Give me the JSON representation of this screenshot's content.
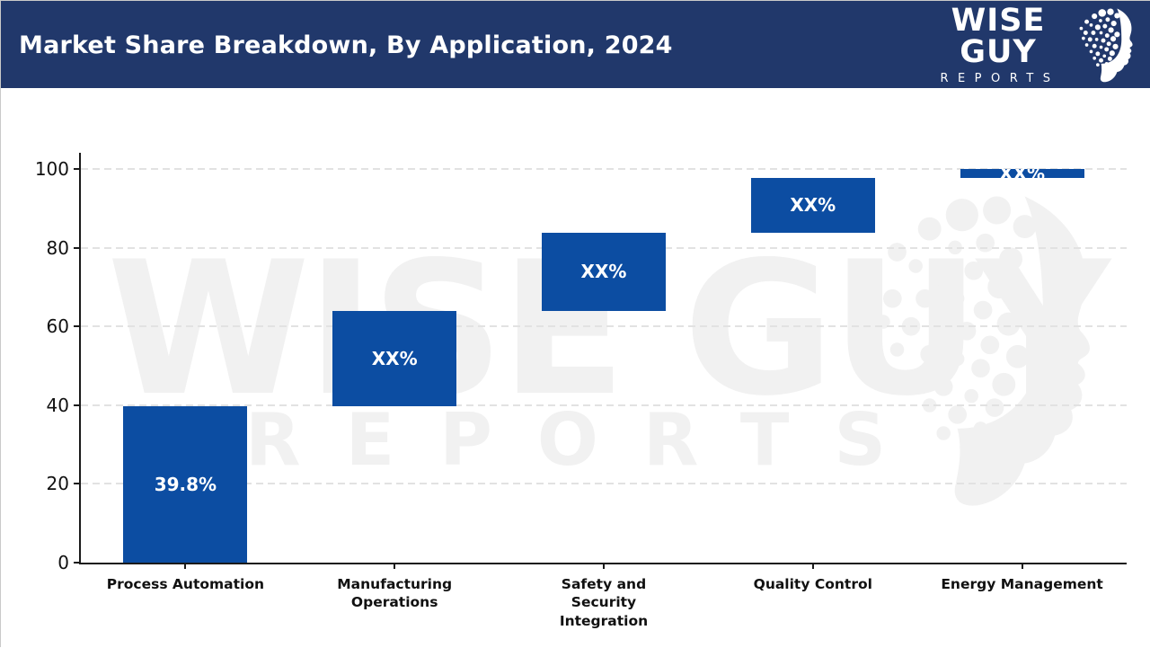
{
  "header": {
    "title": "Market Share Breakdown, By Application, 2024",
    "logo": {
      "line1": "WISE GUY",
      "line2": "REPORTS"
    }
  },
  "watermark": {
    "line1": "WISE GUY",
    "line2": "REPORTS",
    "head_icon": "dotted-head-profile"
  },
  "colors": {
    "header_bg": "#21386b",
    "bar": "#0c4da2",
    "bar_label": "#ffffff",
    "grid": "#e2e2e2",
    "axis": "#1a1a1a",
    "watermark": "#f1f1f1",
    "panel_border": "#c9c9c9"
  },
  "chart_data": {
    "type": "bar",
    "subtype": "waterfall",
    "title": "Market Share Breakdown, By Application, 2024",
    "categories": [
      "Process Automation",
      "Manufacturing\nOperations",
      "Safety and\nSecurity\nIntegration",
      "Quality Control",
      "Energy Management"
    ],
    "segments": [
      {
        "category": "Process Automation",
        "start": 0,
        "end": 39.8,
        "label": "39.8%"
      },
      {
        "category": "Manufacturing Operations",
        "start": 39.8,
        "end": 64.0,
        "label": "XX%"
      },
      {
        "category": "Safety and Security Integration",
        "start": 64.0,
        "end": 83.8,
        "label": "XX%"
      },
      {
        "category": "Quality Control",
        "start": 83.8,
        "end": 97.8,
        "label": "XX%"
      },
      {
        "category": "Energy Management",
        "start": 97.8,
        "end": 100,
        "label": "XX%"
      }
    ],
    "yticks": [
      0,
      20,
      40,
      60,
      80,
      100
    ],
    "ylim": [
      0,
      104
    ],
    "xlabel": "",
    "ylabel": "",
    "grid": "horizontal-dashed",
    "legend": "none"
  }
}
